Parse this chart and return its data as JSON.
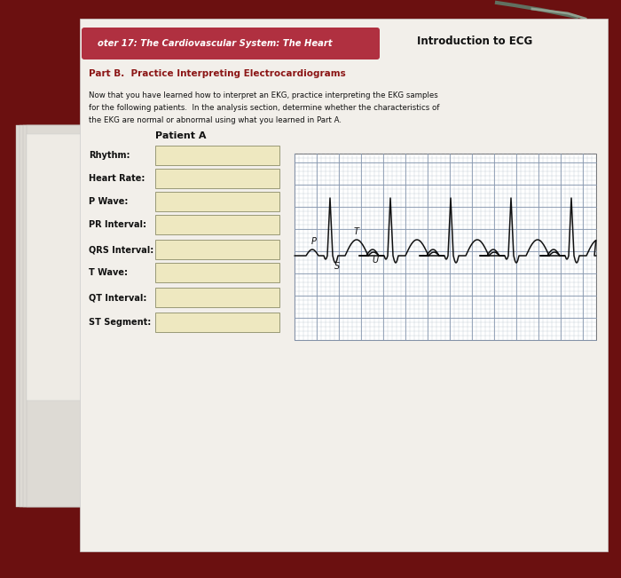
{
  "bg_color": "#6B1010",
  "paper_color": "#f2efea",
  "left_paper_color": "#e8e4de",
  "header_bg": "#b03040",
  "header_text": "oter 17: The Cardiovascular System: The Heart",
  "header_right": "Introduction to ECG",
  "section_title": "Part B.  Practice Interpreting Electrocardiograms",
  "body_line1": "Now that you have learned how to interpret an EKG, practice interpreting the EKG samples",
  "body_line2": "for the following patients.  In the analysis section, determine whether the characteristics of",
  "body_line3": "the EKG are normal or abnormal using what you learned in Part A.",
  "patient_label": "Patient A",
  "form_labels": [
    "Rhythm:",
    "Heart Rate:",
    "P Wave:",
    "PR Interval:",
    "QRS Interval:",
    "T Wave:",
    "QT Interval:",
    "ST Segment:"
  ],
  "box_color": "#eee8c0",
  "box_border": "#999977",
  "grid_color_small": "#b8c0cc",
  "grid_color_large": "#8898b0",
  "ecg_color": "#111111",
  "section_color": "#8B1515"
}
